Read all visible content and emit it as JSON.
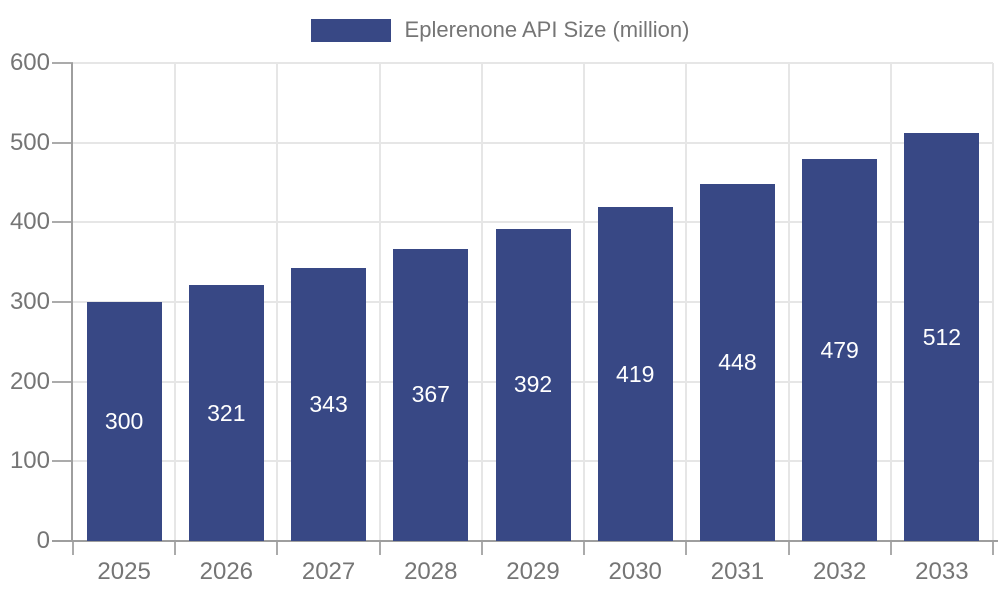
{
  "legend": {
    "label": "Eplerenone API Size (million)"
  },
  "colors": {
    "bar": "#384885",
    "grid": "#e6e6e6",
    "axis": "#9e9e9e",
    "tick": "#ababab",
    "text": "#757575",
    "value_label": "#ffffff",
    "background": "#ffffff"
  },
  "chart_data": {
    "type": "bar",
    "series_name": "Eplerenone API Size (million)",
    "categories": [
      "2025",
      "2026",
      "2027",
      "2028",
      "2029",
      "2030",
      "2031",
      "2032",
      "2033"
    ],
    "values": [
      300,
      321,
      343,
      367,
      392,
      419,
      448,
      479,
      512
    ],
    "title": "",
    "xlabel": "",
    "ylabel": "",
    "ylim": [
      0,
      600
    ],
    "yticks": [
      0,
      100,
      200,
      300,
      400,
      500,
      600
    ],
    "grid": true,
    "legend_position": "top",
    "value_labels": "inside-center"
  }
}
